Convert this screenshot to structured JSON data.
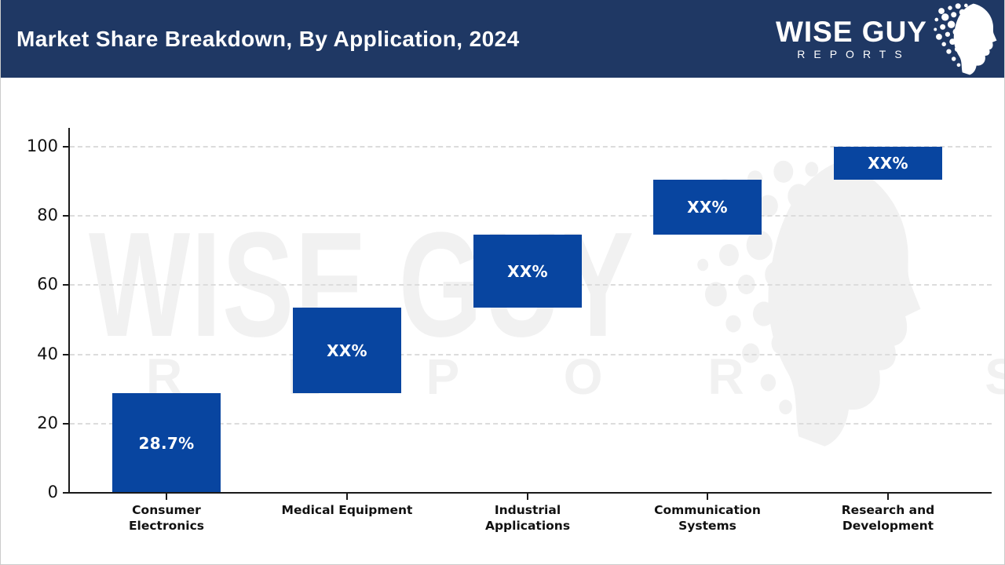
{
  "header": {
    "title": "Market Share Breakdown, By Application, 2024",
    "logo": {
      "line1": "WISE GUY",
      "line2": "REPORTS"
    }
  },
  "watermark": {
    "line1": "WISE GUY",
    "line2": "R E P O R T S"
  },
  "colors": {
    "header_bg": "#1f3864",
    "bar": "#0845a0",
    "gridline": "#dcdcdc",
    "axis": "#1a1a1a",
    "watermark": "#f1f1f1",
    "bar_label": "#ffffff"
  },
  "chart_data": {
    "type": "bar",
    "subtype": "waterfall",
    "title": "Market Share Breakdown, By Application, 2024",
    "categories": [
      "Consumer Electronics",
      "Medical Equipment",
      "Industrial Applications",
      "Communication Systems",
      "Research and Development"
    ],
    "categories_lines": [
      [
        "Consumer",
        "Electronics"
      ],
      [
        "Medical Equipment"
      ],
      [
        "Industrial",
        "Applications"
      ],
      [
        "Communication",
        "Systems"
      ],
      [
        "Research and",
        "Development"
      ]
    ],
    "segments": [
      {
        "category": "Consumer Electronics",
        "start": 0,
        "end": 28.7,
        "label": "28.7%"
      },
      {
        "category": "Medical Equipment",
        "start": 28.7,
        "end": 53.5,
        "label": "XX%"
      },
      {
        "category": "Industrial Applications",
        "start": 53.5,
        "end": 74.5,
        "label": "XX%"
      },
      {
        "category": "Communication Systems",
        "start": 74.5,
        "end": 90.5,
        "label": "XX%"
      },
      {
        "category": "Research and Development",
        "start": 90.5,
        "end": 100,
        "label": "XX%"
      }
    ],
    "ylim": [
      0,
      100
    ],
    "yticks": [
      0,
      20,
      40,
      60,
      80,
      100
    ],
    "grid": "dashed-horizontal",
    "legend": "none",
    "xlabel": "",
    "ylabel": ""
  }
}
